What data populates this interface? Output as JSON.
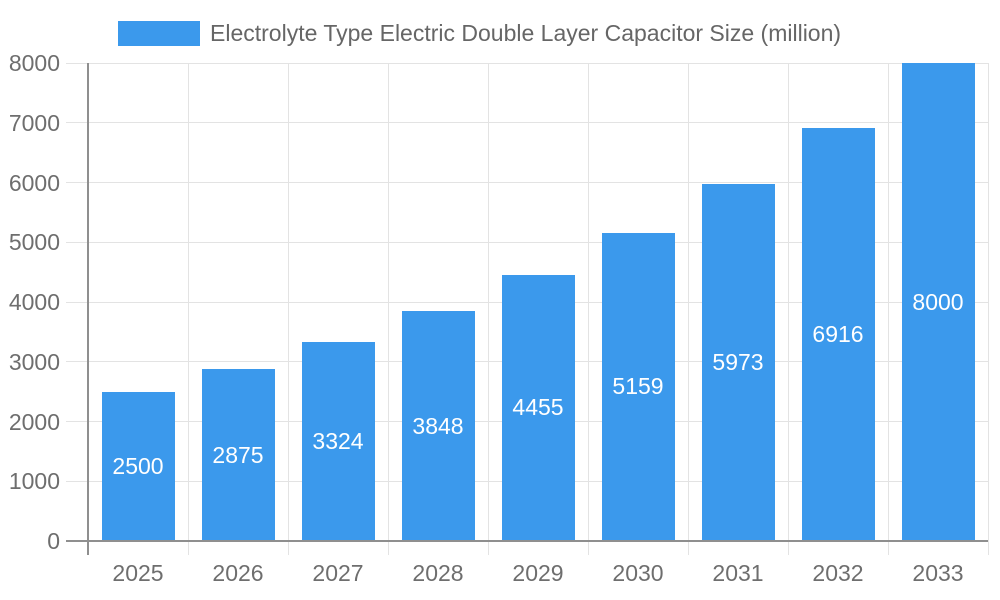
{
  "legend": {
    "swatch_color": "#3b99ec"
  },
  "chart_data": {
    "type": "bar",
    "title": "Electrolyte Type Electric Double Layer Capacitor Size (million)",
    "categories": [
      "2025",
      "2026",
      "2027",
      "2028",
      "2029",
      "2030",
      "2031",
      "2032",
      "2033"
    ],
    "values": [
      2500,
      2875,
      3324,
      3848,
      4455,
      5159,
      5973,
      6916,
      8000
    ],
    "xlabel": "",
    "ylabel": "",
    "ylim": [
      0,
      8000
    ],
    "ytick_step": 1000,
    "ytick_labels": [
      "0",
      "1000",
      "2000",
      "3000",
      "4000",
      "5000",
      "6000",
      "7000",
      "8000"
    ],
    "grid": true,
    "legend_position": "top",
    "bar_color": "#3b99ec",
    "bar_label_color": "#ffffff",
    "grid_color": "#e3e3e3",
    "axis_color": "#8f8f8f",
    "tick_text_color": "#6e6e6e"
  }
}
